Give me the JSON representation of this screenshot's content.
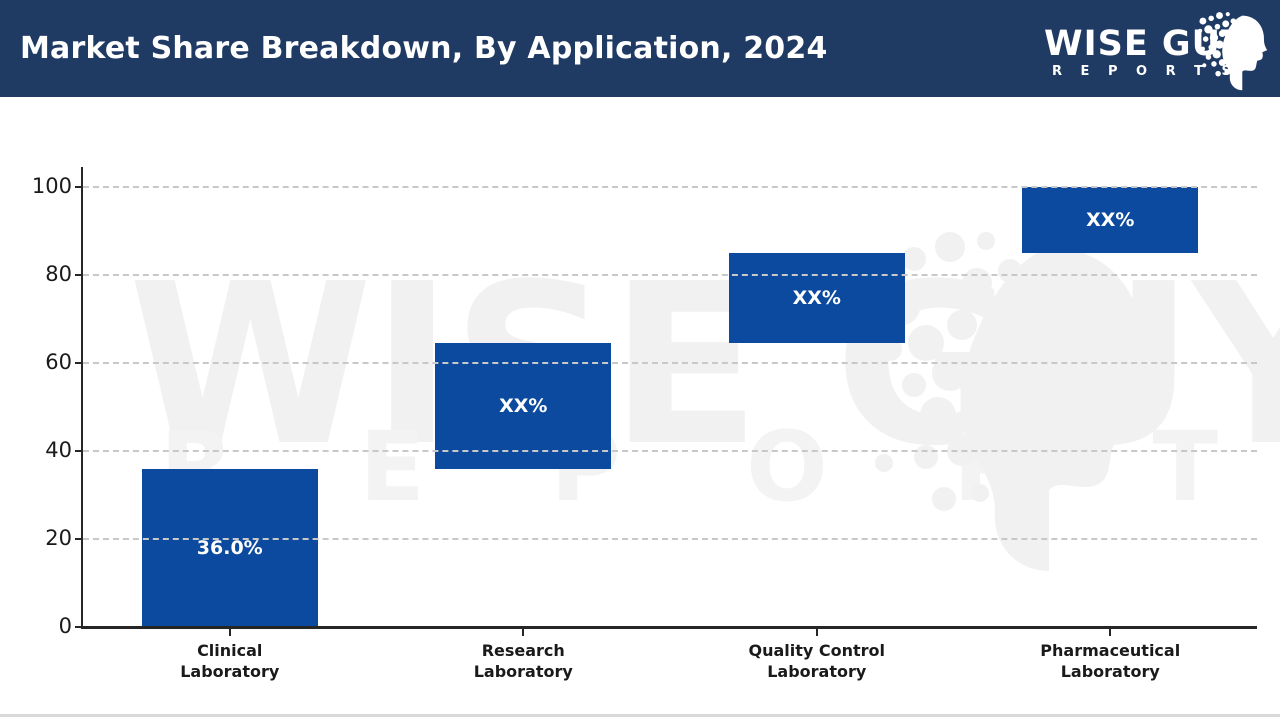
{
  "header": {
    "title": "Market Share Breakdown, By Application, 2024",
    "logo": {
      "wordmark": "WISE GUY",
      "sub": "R E P O R T S"
    }
  },
  "watermark": {
    "wordmark": "WISE GUY",
    "sub": "R E P O R T S"
  },
  "colors": {
    "header_bg": "#1f3a63",
    "bar": "#0b4a9e",
    "bar_label": "#ffffff",
    "grid": "#c8c8c8",
    "axis": "#262626",
    "tick_label": "#1a1a1a",
    "watermark": "#f1f1f1",
    "divider": "#d9d9d9"
  },
  "chart_data": {
    "type": "bar",
    "subtype": "waterfall",
    "title": "Market Share Breakdown, By Application, 2024",
    "xlabel": "",
    "ylabel": "",
    "ylim": [
      0,
      104.5
    ],
    "yticks": [
      0,
      20,
      40,
      60,
      80,
      100
    ],
    "grid": "horizontal-dashed",
    "legend": null,
    "categories": [
      [
        "Clinical",
        "Laboratory"
      ],
      [
        "Research",
        "Laboratory"
      ],
      [
        "Quality Control",
        "Laboratory"
      ],
      [
        "Pharmaceutical",
        "Laboratory"
      ]
    ],
    "bars": [
      {
        "category": "Clinical Laboratory",
        "start": 0,
        "end": 36,
        "label": "36.0%"
      },
      {
        "category": "Research Laboratory",
        "start": 36,
        "end": 64.5,
        "label": "XX%"
      },
      {
        "category": "Quality Control Laboratory",
        "start": 64.5,
        "end": 85,
        "label": "XX%"
      },
      {
        "category": "Pharmaceutical Laboratory",
        "start": 85,
        "end": 100,
        "label": "XX%"
      }
    ]
  }
}
